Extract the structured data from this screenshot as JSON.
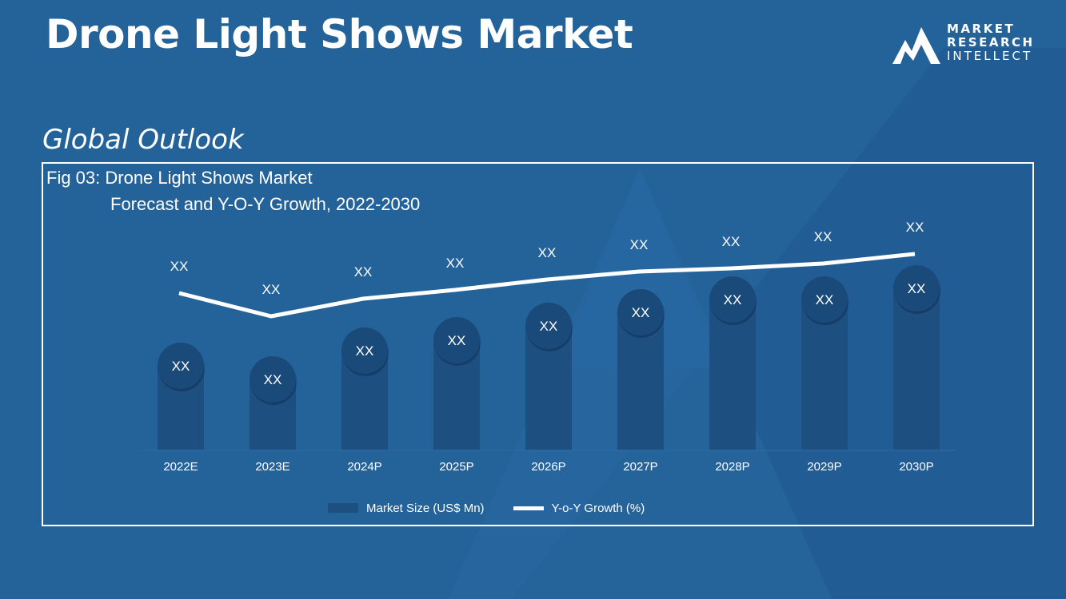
{
  "header": {
    "title": "Drone Light Shows Market",
    "subtitle": "Global Outlook"
  },
  "logo": {
    "line1": "MARKET",
    "line2": "RESEARCH",
    "line3": "INTELLECT"
  },
  "figure": {
    "caption_line1": "Fig 03: Drone Light Shows Market",
    "caption_line2": "Forecast and Y-O-Y Growth, 2022-2030"
  },
  "colors": {
    "background": "#24629a",
    "bar": "#1d4f80",
    "bubble": "#1a4a79",
    "line": "#ffffff"
  },
  "chart_data": {
    "type": "bar",
    "categories": [
      "2022E",
      "2023E",
      "2024P",
      "2025P",
      "2026P",
      "2027P",
      "2028P",
      "2029P",
      "2030P"
    ],
    "series": [
      {
        "name": "Market Size (US$ Mn)",
        "type": "bar",
        "values": [
          105,
          88,
          124,
          137,
          155,
          172,
          188,
          188,
          202
        ],
        "labels": [
          "XX",
          "XX",
          "XX",
          "XX",
          "XX",
          "XX",
          "XX",
          "XX",
          "XX"
        ]
      },
      {
        "name": "Y-o-Y Growth (%)",
        "type": "line",
        "values": [
          196,
          167,
          189,
          200,
          213,
          223,
          227,
          233,
          245
        ],
        "labels": [
          "XX",
          "XX",
          "XX",
          "XX",
          "XX",
          "XX",
          "XX",
          "XX",
          "XX"
        ]
      }
    ],
    "ylim": [
      0,
      260
    ],
    "legend": [
      "Market Size (US$ Mn)",
      "Y-o-Y Growth (%)"
    ],
    "legend_position": "bottom"
  }
}
